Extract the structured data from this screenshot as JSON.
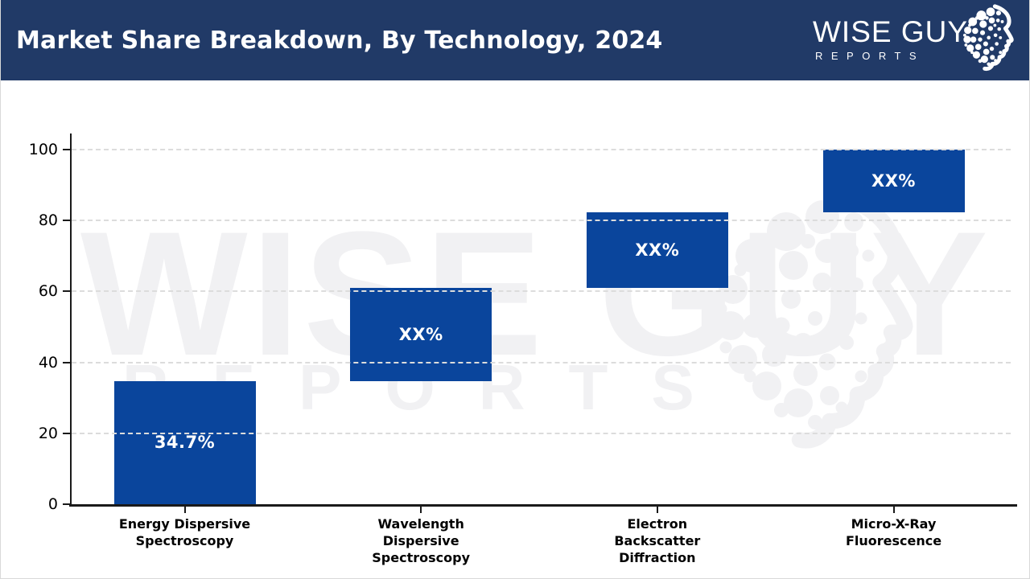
{
  "header": {
    "title": "Market Share Breakdown, By Technology, 2024",
    "logo": {
      "brand_top": "WISE GUY",
      "brand_bottom": "REPORTS"
    }
  },
  "watermark": {
    "line1": "WISE GUY",
    "line2": "REPORTS"
  },
  "colors": {
    "header_bg": "#213a67",
    "bar": "#0a459c",
    "axis": "#1a1a1a",
    "grid": "#dcdcdc",
    "watermark": "#f1f1f3",
    "title_text": "#ffffff"
  },
  "chart_data": {
    "type": "bar",
    "subtype": "waterfall",
    "title": "Market Share Breakdown, By Technology, 2024",
    "xlabel": "",
    "ylabel": "",
    "ylim": [
      0,
      104
    ],
    "grid": "horizontal-dashed",
    "legend": "none",
    "categories": [
      "Energy Dispersive\nSpectroscopy",
      "Wavelength\nDispersive\nSpectroscopy",
      "Electron\nBackscatter\nDiffraction",
      "Micro-X-Ray\nFluorescence"
    ],
    "yticks": [
      0,
      20,
      40,
      60,
      80,
      100
    ],
    "bars": [
      {
        "label": "34.7%",
        "start": 0,
        "end": 34.7,
        "value": 34.7
      },
      {
        "label": "XX%",
        "start": 34.7,
        "end": 61.0,
        "value": 26.3
      },
      {
        "label": "XX%",
        "start": 61.0,
        "end": 82.3,
        "value": 21.3
      },
      {
        "label": "XX%",
        "start": 82.3,
        "end": 100.0,
        "value": 17.7
      }
    ]
  }
}
